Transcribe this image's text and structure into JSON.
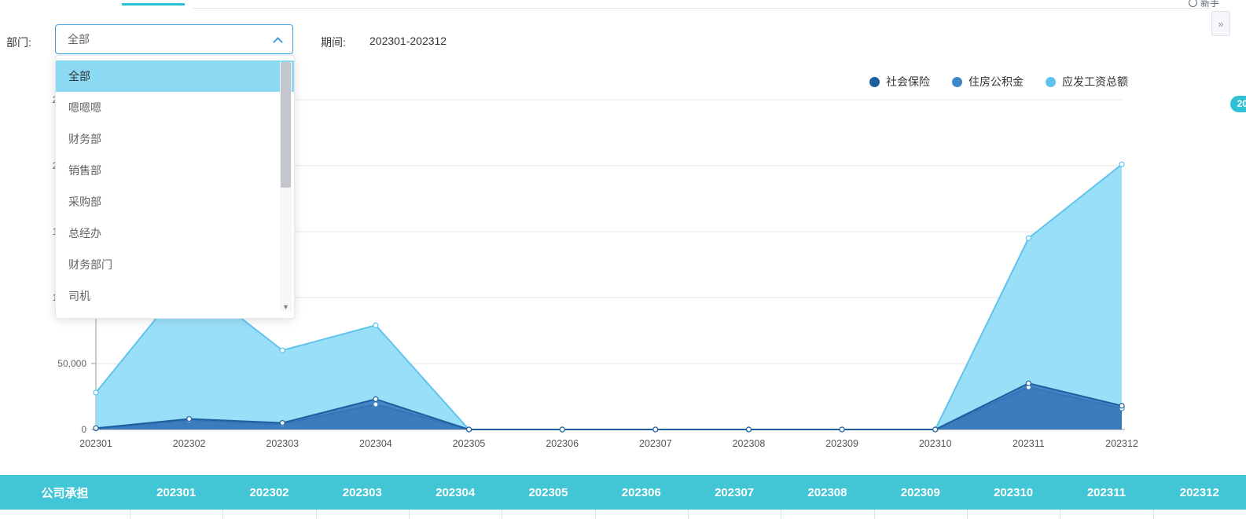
{
  "topbar": {
    "novice_label": "新手",
    "expander_icon": "»",
    "side_badge": "20"
  },
  "filters": {
    "department_label": "部门:",
    "department_value": "全部",
    "period_label": "期间:",
    "period_value": "202301-202312"
  },
  "dropdown": {
    "items": [
      {
        "label": "全部",
        "selected": true
      },
      {
        "label": "嗯嗯嗯"
      },
      {
        "label": "财务部"
      },
      {
        "label": "销售部"
      },
      {
        "label": "采购部"
      },
      {
        "label": "总经办"
      },
      {
        "label": "财务部门"
      },
      {
        "label": "司机"
      }
    ],
    "scroll_arrow": "▼"
  },
  "chart_data": {
    "type": "area",
    "x": [
      "202301",
      "202302",
      "202303",
      "202304",
      "202305",
      "202306",
      "202307",
      "202308",
      "202309",
      "202310",
      "202311",
      "202312"
    ],
    "series": [
      {
        "name": "社会保险",
        "color": "#1e5fa0",
        "fill": "#2e6fb4",
        "opacity": 0.8,
        "values": [
          1000,
          8000,
          5000,
          23000,
          0,
          0,
          0,
          0,
          0,
          0,
          35000,
          18000
        ]
      },
      {
        "name": "住房公积金",
        "color": "#3f87c8",
        "fill": "#5f9fd8",
        "opacity": 0.75,
        "values": [
          800,
          7000,
          4000,
          19000,
          0,
          0,
          0,
          0,
          0,
          0,
          32000,
          16000
        ]
      },
      {
        "name": "应发工资总额",
        "color": "#5fc3ee",
        "fill": "#8edbf7",
        "opacity": 0.9,
        "values": [
          28000,
          115000,
          60000,
          79000,
          0,
          0,
          0,
          0,
          0,
          0,
          145000,
          201000
        ]
      }
    ],
    "ylim": [
      0,
      250000
    ],
    "ytick_step": 50000,
    "grid": true,
    "legend_position": "top-right"
  },
  "bottom_table": {
    "header": [
      "公司承担",
      "202301",
      "202302",
      "202303",
      "202304",
      "202305",
      "202306",
      "202307",
      "202308",
      "202309",
      "202310",
      "202311",
      "202312"
    ]
  }
}
